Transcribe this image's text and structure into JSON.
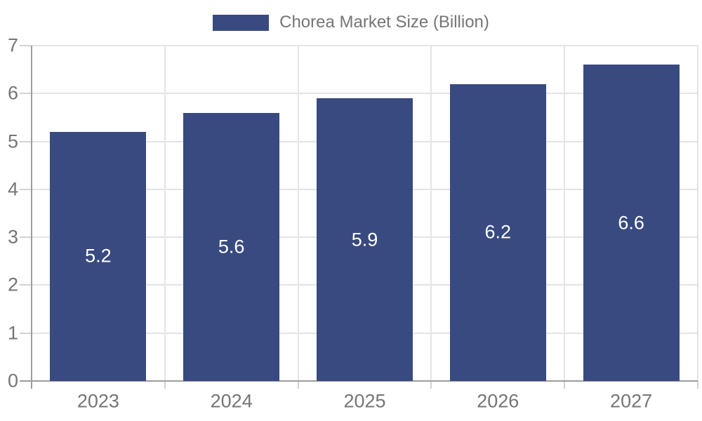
{
  "legend": {
    "label": "Chorea Market Size (Billion)"
  },
  "chart_data": {
    "type": "bar",
    "title": "Chorea Market Size (Billion)",
    "categories": [
      "2023",
      "2024",
      "2025",
      "2026",
      "2027"
    ],
    "series": [
      {
        "name": "Chorea Market Size (Billion)",
        "values": [
          5.2,
          5.6,
          5.9,
          6.2,
          6.6
        ]
      }
    ],
    "value_labels": [
      "5.2",
      "5.6",
      "5.9",
      "6.2",
      "6.6"
    ],
    "xlabel": "",
    "ylabel": "",
    "ylim": [
      0,
      7
    ],
    "yticks": [
      0,
      1,
      2,
      3,
      4,
      5,
      6,
      7
    ],
    "grid": true,
    "legend_position": "top-center",
    "colors": {
      "bar": "#394a81",
      "value_label": "#ffffff",
      "axis_text": "#757575",
      "axis_line": "#9d9d9d",
      "gridline": "#e4e4e4",
      "tick": "#d2d2d2",
      "background": "#ffffff"
    }
  }
}
